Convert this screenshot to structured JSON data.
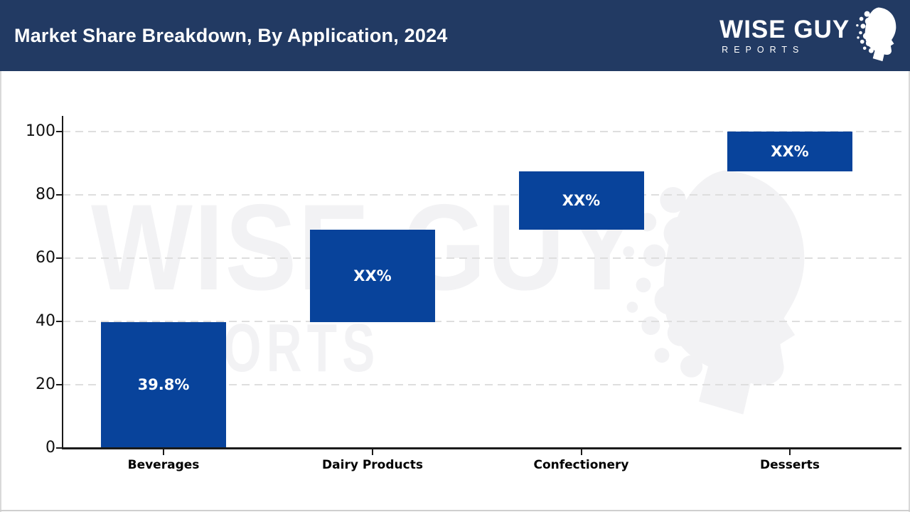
{
  "header": {
    "title": "Market Share Breakdown, By Application, 2024",
    "logo": {
      "name": "WISE GUY",
      "subtitle": "REPORTS"
    }
  },
  "watermark": {
    "line1": "WISE GUY",
    "line2": "REPORTS"
  },
  "colors": {
    "header_bg": "#223a63",
    "bar": "#08439b",
    "grid": "#dedede",
    "axis": "#1a1a1a",
    "bar_label": "#ffffff",
    "watermark": "#f2f2f4"
  },
  "chart_data": {
    "type": "bar",
    "subtype": "waterfall",
    "title": "Market Share Breakdown, By Application, 2024",
    "categories": [
      "Beverages",
      "Dairy Products",
      "Confectionery",
      "Desserts"
    ],
    "segments": [
      {
        "category": "Beverages",
        "start": 0,
        "end": 39.8,
        "label": "39.8%"
      },
      {
        "category": "Dairy Products",
        "start": 39.8,
        "end": 69,
        "label": "XX%"
      },
      {
        "category": "Confectionery",
        "start": 69,
        "end": 87.3,
        "label": "XX%"
      },
      {
        "category": "Desserts",
        "start": 87.3,
        "end": 100,
        "label": "XX%"
      }
    ],
    "xlabel": "",
    "ylabel": "",
    "yticks": [
      0,
      20,
      40,
      60,
      80,
      100
    ],
    "ylim": [
      0,
      104.9
    ],
    "grid": "horizontal-dashed",
    "legend": "none"
  }
}
